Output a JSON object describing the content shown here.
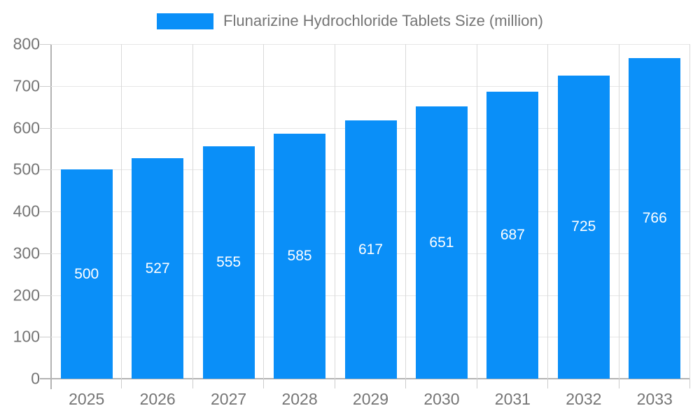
{
  "legend": {
    "label": "Flunarizine Hydrochloride Tablets Size (million)",
    "swatch_color": "#0a8ff8"
  },
  "chart_data": {
    "type": "bar",
    "title": "Flunarizine Hydrochloride Tablets Size (million)",
    "categories": [
      "2025",
      "2026",
      "2027",
      "2028",
      "2029",
      "2030",
      "2031",
      "2032",
      "2033"
    ],
    "values": [
      500,
      527,
      555,
      585,
      617,
      651,
      687,
      725,
      766
    ],
    "xlabel": "",
    "ylabel": "",
    "ylim": [
      0,
      800
    ],
    "yticks": [
      0,
      100,
      200,
      300,
      400,
      500,
      600,
      700,
      800
    ],
    "grid": true,
    "legend_position": "top-center",
    "bar_color": "#0a8ff8",
    "value_label_color": "#ffffff",
    "axis_text_color": "#757575",
    "axis_line_color": "#b3b3b3",
    "gridline_color": "#e6e6e6"
  }
}
